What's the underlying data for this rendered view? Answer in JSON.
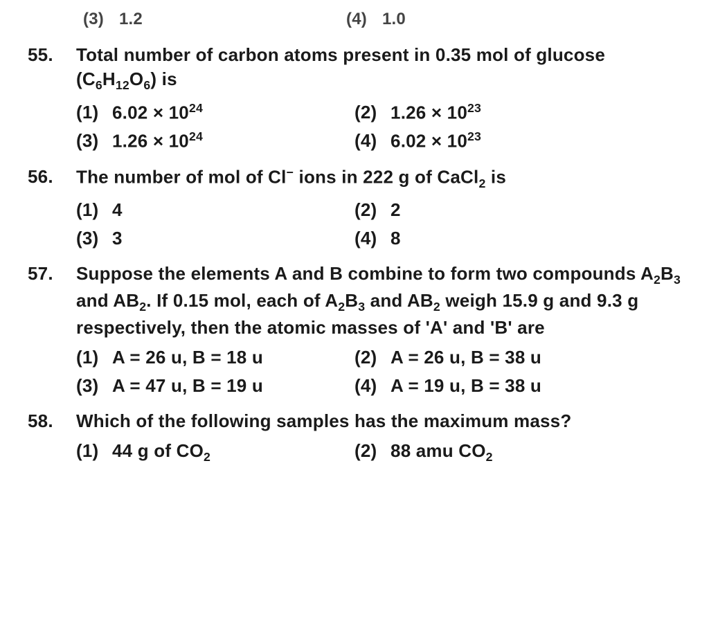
{
  "partial": {
    "left_num": "(3)",
    "left_txt": "1.2",
    "right_num": "(4)",
    "right_txt": "1.0"
  },
  "q55": {
    "num": "55.",
    "stem_a": "Total number of carbon atoms present in 0.35 mol of glucose (C",
    "stem_b": "H",
    "stem_c": "O",
    "stem_d": ") is",
    "sub1": "6",
    "sub2": "12",
    "sub3": "6",
    "o1n": "(1)",
    "o1a": "6.02 × 10",
    "o1s": "24",
    "o2n": "(2)",
    "o2a": "1.26 × 10",
    "o2s": "23",
    "o3n": "(3)",
    "o3a": "1.26 × 10",
    "o3s": "24",
    "o4n": "(4)",
    "o4a": "6.02 × 10",
    "o4s": "23"
  },
  "q56": {
    "num": "56.",
    "stem_a": "The number of mol of Cl",
    "stem_sup": "−",
    "stem_b": " ions in 222 g of CaCl",
    "stem_sub": "2",
    "stem_c": " is",
    "o1n": "(1)",
    "o1": "4",
    "o2n": "(2)",
    "o2": "2",
    "o3n": "(3)",
    "o3": "3",
    "o4n": "(4)",
    "o4": "8"
  },
  "q57": {
    "num": "57.",
    "stem_a": "Suppose the elements A and B combine to form two compounds A",
    "s1": "2",
    "stem_b": "B",
    "s2": "3",
    "stem_c": " and AB",
    "s3": "2",
    "stem_d": ". If 0.15 mol, each of A",
    "s4": "2",
    "stem_e": "B",
    "s5": "3",
    "stem_f": " and AB",
    "s6": "2",
    "stem_g": " weigh 15.9 g and 9.3 g respectively, then the atomic masses of 'A' and 'B' are",
    "o1n": "(1)",
    "o1": "A = 26 u, B = 18 u",
    "o2n": "(2)",
    "o2": "A = 26 u, B = 38 u",
    "o3n": "(3)",
    "o3": "A = 47 u, B = 19 u",
    "o4n": "(4)",
    "o4": "A = 19 u, B = 38 u"
  },
  "q58": {
    "num": "58.",
    "stem": "Which of the following samples has the maximum mass?",
    "o1n": "(1)",
    "o1a": "44 g of CO",
    "o1s": "2",
    "o2n": "(2)",
    "o2a": "88 amu CO",
    "o2s": "2"
  }
}
